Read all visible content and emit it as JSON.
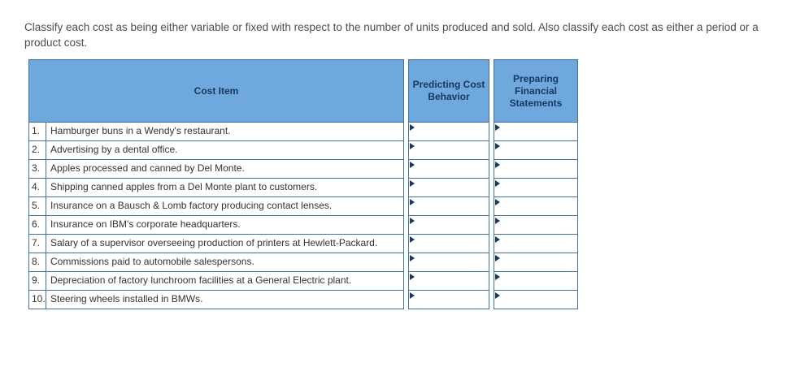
{
  "instructions": "Classify each cost as being either variable or fixed with respect to the number of units produced and sold. Also classify each cost as either a period or a product cost.",
  "table": {
    "headers": {
      "cost_item": "Cost Item",
      "predicting": "Predicting Cost Behavior",
      "preparing": "Preparing Financial Statements"
    },
    "rows": [
      {
        "number": "1.",
        "item": "Hamburger buns in a Wendy's restaurant."
      },
      {
        "number": "2.",
        "item": "Advertising by a dental office."
      },
      {
        "number": "3.",
        "item": "Apples processed and canned by Del Monte."
      },
      {
        "number": "4.",
        "item": "Shipping canned apples from a Del Monte plant to customers."
      },
      {
        "number": "5.",
        "item": "Insurance on a Bausch & Lomb factory producing contact lenses."
      },
      {
        "number": "6.",
        "item": "Insurance on IBM's corporate headquarters."
      },
      {
        "number": "7.",
        "item": "Salary of a supervisor overseeing production of printers at Hewlett-Packard."
      },
      {
        "number": "8.",
        "item": "Commissions paid to automobile salespersons."
      },
      {
        "number": "9.",
        "item": "Depreciation of factory lunchroom facilities at a General Electric plant."
      },
      {
        "number": "10.",
        "item": "Steering wheels installed in BMWs."
      }
    ]
  },
  "colors": {
    "header_bg": "#6FA8DC",
    "border": "#41719C",
    "header_text": "#17375E",
    "body_text": "#333333",
    "dropdown_marker": "#17375E"
  }
}
